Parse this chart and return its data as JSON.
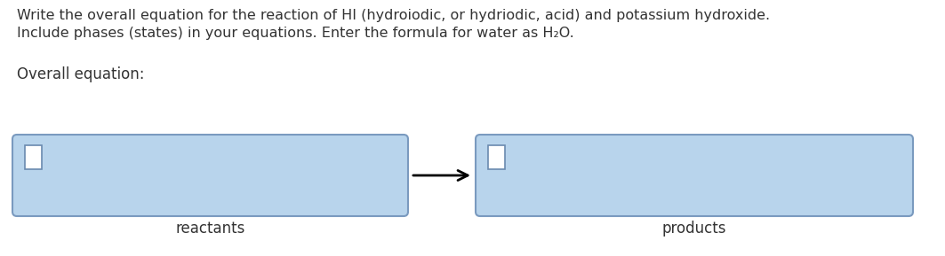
{
  "title_line1": "Write the overall equation for the reaction of HI (hydroiodic, or hydriodic, acid) and potassium hydroxide.",
  "title_line2": "Include phases (states) in your equations. Enter the formula for water as H₂O.",
  "overall_label": "Overall equation:",
  "reactants_label": "reactants",
  "products_label": "products",
  "bg_color": "#ffffff",
  "box_fill_color": "#b8d4ec",
  "box_edge_color": "#7a9abf",
  "small_box_fill": "#ffffff",
  "small_box_edge": "#6a8aaf",
  "text_color": "#333333",
  "title_fontsize": 11.5,
  "label_fontsize": 12,
  "figwidth": 10.63,
  "figheight": 2.89,
  "dpi": 100
}
